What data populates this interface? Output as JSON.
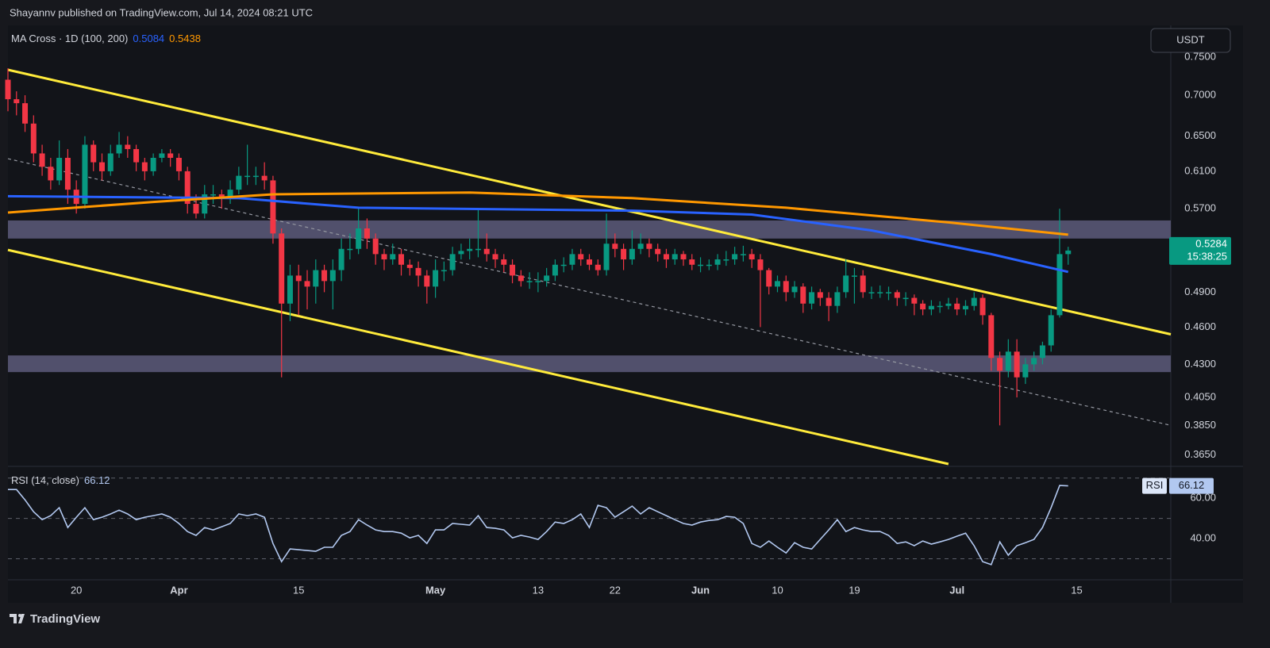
{
  "header": "Shayannv published on TradingView.com, Jul 14, 2024 08:21 UTC",
  "currency": "USDT",
  "footer": "TradingView",
  "chart_data": [
    {
      "type": "candlestick",
      "indicator_name": "MA Cross · 1D (100, 200)",
      "log": true,
      "ylim": [
        0.359,
        0.791
      ],
      "xlim": [
        "2024-03-12",
        "2024-07-26"
      ],
      "yticks": [
        {
          "value": 0.75,
          "label": "0.7500"
        },
        {
          "value": 0.7,
          "label": "0.7000"
        },
        {
          "value": 0.65,
          "label": "0.6500"
        },
        {
          "value": 0.61,
          "label": "0.6100"
        },
        {
          "value": 0.57,
          "label": "0.5700"
        },
        {
          "value": 0.49,
          "label": "0.4900"
        },
        {
          "value": 0.46,
          "label": "0.4600"
        },
        {
          "value": 0.43,
          "label": "0.4300"
        },
        {
          "value": 0.405,
          "label": "0.4050"
        },
        {
          "value": 0.385,
          "label": "0.3850"
        },
        {
          "value": 0.365,
          "label": "0.3650"
        }
      ],
      "up_color": "#089981",
      "down_color": "#f23645",
      "countdown": "15:38:25",
      "x": [
        "2024-03-12",
        "2024-03-13",
        "2024-03-14",
        "2024-03-15",
        "2024-03-16",
        "2024-03-17",
        "2024-03-18",
        "2024-03-19",
        "2024-03-20",
        "2024-03-21",
        "2024-03-22",
        "2024-03-23",
        "2024-03-24",
        "2024-03-25",
        "2024-03-26",
        "2024-03-27",
        "2024-03-28",
        "2024-03-29",
        "2024-03-30",
        "2024-03-31",
        "2024-04-01",
        "2024-04-02",
        "2024-04-03",
        "2024-04-04",
        "2024-04-05",
        "2024-04-06",
        "2024-04-07",
        "2024-04-08",
        "2024-04-09",
        "2024-04-10",
        "2024-04-11",
        "2024-04-12",
        "2024-04-13",
        "2024-04-14",
        "2024-04-15",
        "2024-04-16",
        "2024-04-17",
        "2024-04-18",
        "2024-04-19",
        "2024-04-20",
        "2024-04-21",
        "2024-04-22",
        "2024-04-23",
        "2024-04-24",
        "2024-04-25",
        "2024-04-26",
        "2024-04-27",
        "2024-04-28",
        "2024-04-29",
        "2024-04-30",
        "2024-05-01",
        "2024-05-02",
        "2024-05-03",
        "2024-05-04",
        "2024-05-05",
        "2024-05-06",
        "2024-05-07",
        "2024-05-08",
        "2024-05-09",
        "2024-05-10",
        "2024-05-11",
        "2024-05-12",
        "2024-05-13",
        "2024-05-14",
        "2024-05-15",
        "2024-05-16",
        "2024-05-17",
        "2024-05-18",
        "2024-05-19",
        "2024-05-20",
        "2024-05-21",
        "2024-05-22",
        "2024-05-23",
        "2024-05-24",
        "2024-05-25",
        "2024-05-26",
        "2024-05-27",
        "2024-05-28",
        "2024-05-29",
        "2024-05-30",
        "2024-05-31",
        "2024-06-01",
        "2024-06-02",
        "2024-06-03",
        "2024-06-04",
        "2024-06-05",
        "2024-06-06",
        "2024-06-07",
        "2024-06-08",
        "2024-06-09",
        "2024-06-10",
        "2024-06-11",
        "2024-06-12",
        "2024-06-13",
        "2024-06-14",
        "2024-06-15",
        "2024-06-16",
        "2024-06-17",
        "2024-06-18",
        "2024-06-19",
        "2024-06-20",
        "2024-06-21",
        "2024-06-22",
        "2024-06-23",
        "2024-06-24",
        "2024-06-25",
        "2024-06-26",
        "2024-06-27",
        "2024-06-28",
        "2024-06-29",
        "2024-06-30",
        "2024-07-01",
        "2024-07-02",
        "2024-07-03",
        "2024-07-04",
        "2024-07-05",
        "2024-07-06",
        "2024-07-07",
        "2024-07-08",
        "2024-07-09",
        "2024-07-10",
        "2024-07-11",
        "2024-07-12",
        "2024-07-13",
        "2024-07-14"
      ],
      "open": [
        0.72,
        0.695,
        0.69,
        0.665,
        0.63,
        0.615,
        0.6,
        0.625,
        0.59,
        0.575,
        0.64,
        0.62,
        0.61,
        0.63,
        0.64,
        0.635,
        0.62,
        0.61,
        0.625,
        0.63,
        0.625,
        0.61,
        0.575,
        0.565,
        0.585,
        0.585,
        0.58,
        0.59,
        0.605,
        0.605,
        0.605,
        0.6,
        0.545,
        0.48,
        0.505,
        0.5,
        0.495,
        0.51,
        0.5,
        0.51,
        0.53,
        0.53,
        0.55,
        0.54,
        0.525,
        0.52,
        0.525,
        0.515,
        0.512,
        0.505,
        0.495,
        0.51,
        0.51,
        0.525,
        0.528,
        0.53,
        0.53,
        0.525,
        0.52,
        0.515,
        0.505,
        0.5,
        0.5,
        0.5,
        0.505,
        0.515,
        0.515,
        0.525,
        0.52,
        0.515,
        0.51,
        0.535,
        0.53,
        0.52,
        0.53,
        0.535,
        0.53,
        0.525,
        0.52,
        0.525,
        0.52,
        0.515,
        0.515,
        0.515,
        0.52,
        0.52,
        0.525,
        0.525,
        0.52,
        0.51,
        0.495,
        0.5,
        0.49,
        0.495,
        0.48,
        0.49,
        0.485,
        0.478,
        0.49,
        0.505,
        0.505,
        0.49,
        0.49,
        0.49,
        0.49,
        0.485,
        0.485,
        0.48,
        0.475,
        0.478,
        0.478,
        0.48,
        0.475,
        0.478,
        0.485,
        0.47,
        0.435,
        0.425,
        0.44,
        0.42,
        0.43,
        0.435,
        0.445,
        0.47,
        0.525
      ],
      "high": [
        0.735,
        0.705,
        0.7,
        0.675,
        0.64,
        0.625,
        0.645,
        0.635,
        0.6,
        0.65,
        0.645,
        0.63,
        0.64,
        0.655,
        0.65,
        0.64,
        0.625,
        0.63,
        0.635,
        0.635,
        0.63,
        0.615,
        0.585,
        0.595,
        0.595,
        0.59,
        0.6,
        0.615,
        0.64,
        0.615,
        0.62,
        0.605,
        0.55,
        0.515,
        0.515,
        0.51,
        0.52,
        0.515,
        0.52,
        0.54,
        0.545,
        0.57,
        0.56,
        0.545,
        0.53,
        0.535,
        0.53,
        0.52,
        0.518,
        0.51,
        0.52,
        0.518,
        0.532,
        0.535,
        0.54,
        0.57,
        0.545,
        0.53,
        0.525,
        0.52,
        0.51,
        0.508,
        0.508,
        0.512,
        0.52,
        0.522,
        0.53,
        0.53,
        0.525,
        0.52,
        0.565,
        0.545,
        0.535,
        0.548,
        0.545,
        0.54,
        0.535,
        0.53,
        0.53,
        0.528,
        0.525,
        0.522,
        0.52,
        0.525,
        0.528,
        0.532,
        0.533,
        0.53,
        0.525,
        0.512,
        0.505,
        0.505,
        0.5,
        0.498,
        0.495,
        0.493,
        0.49,
        0.495,
        0.52,
        0.512,
        0.51,
        0.495,
        0.496,
        0.495,
        0.492,
        0.49,
        0.488,
        0.483,
        0.483,
        0.482,
        0.485,
        0.485,
        0.483,
        0.49,
        0.488,
        0.472,
        0.44,
        0.45,
        0.45,
        0.435,
        0.44,
        0.448,
        0.475,
        0.57,
        0.532
      ],
      "low": [
        0.68,
        0.675,
        0.655,
        0.62,
        0.605,
        0.59,
        0.595,
        0.575,
        0.565,
        0.57,
        0.61,
        0.6,
        0.605,
        0.625,
        0.625,
        0.61,
        0.6,
        0.605,
        0.62,
        0.615,
        0.6,
        0.565,
        0.56,
        0.56,
        0.575,
        0.57,
        0.575,
        0.585,
        0.595,
        0.595,
        0.59,
        0.535,
        0.42,
        0.465,
        0.47,
        0.475,
        0.48,
        0.49,
        0.475,
        0.5,
        0.52,
        0.525,
        0.53,
        0.515,
        0.51,
        0.515,
        0.505,
        0.505,
        0.495,
        0.48,
        0.485,
        0.5,
        0.505,
        0.52,
        0.52,
        0.522,
        0.518,
        0.512,
        0.508,
        0.498,
        0.495,
        0.493,
        0.49,
        0.495,
        0.5,
        0.508,
        0.51,
        0.514,
        0.51,
        0.505,
        0.505,
        0.522,
        0.51,
        0.515,
        0.525,
        0.522,
        0.518,
        0.512,
        0.515,
        0.514,
        0.51,
        0.508,
        0.51,
        0.51,
        0.514,
        0.515,
        0.518,
        0.512,
        0.46,
        0.488,
        0.49,
        0.482,
        0.485,
        0.472,
        0.475,
        0.478,
        0.465,
        0.472,
        0.485,
        0.48,
        0.485,
        0.484,
        0.485,
        0.483,
        0.478,
        0.478,
        0.47,
        0.47,
        0.47,
        0.472,
        0.475,
        0.47,
        0.47,
        0.474,
        0.462,
        0.425,
        0.385,
        0.42,
        0.405,
        0.415,
        0.425,
        0.43,
        0.44,
        0.468,
        0.515
      ],
      "close": [
        0.695,
        0.69,
        0.665,
        0.63,
        0.615,
        0.6,
        0.625,
        0.59,
        0.575,
        0.64,
        0.62,
        0.61,
        0.63,
        0.64,
        0.635,
        0.62,
        0.61,
        0.625,
        0.63,
        0.625,
        0.61,
        0.575,
        0.565,
        0.585,
        0.585,
        0.58,
        0.59,
        0.605,
        0.605,
        0.605,
        0.6,
        0.545,
        0.48,
        0.505,
        0.5,
        0.495,
        0.51,
        0.5,
        0.51,
        0.53,
        0.53,
        0.55,
        0.54,
        0.525,
        0.52,
        0.525,
        0.515,
        0.512,
        0.505,
        0.495,
        0.51,
        0.51,
        0.525,
        0.528,
        0.53,
        0.53,
        0.525,
        0.52,
        0.515,
        0.505,
        0.5,
        0.5,
        0.5,
        0.505,
        0.515,
        0.515,
        0.525,
        0.52,
        0.515,
        0.51,
        0.535,
        0.53,
        0.52,
        0.53,
        0.535,
        0.53,
        0.525,
        0.52,
        0.525,
        0.52,
        0.515,
        0.515,
        0.515,
        0.52,
        0.52,
        0.525,
        0.525,
        0.52,
        0.51,
        0.495,
        0.5,
        0.49,
        0.495,
        0.48,
        0.49,
        0.485,
        0.478,
        0.49,
        0.505,
        0.505,
        0.49,
        0.49,
        0.49,
        0.49,
        0.485,
        0.485,
        0.48,
        0.475,
        0.478,
        0.478,
        0.48,
        0.475,
        0.478,
        0.485,
        0.47,
        0.435,
        0.425,
        0.44,
        0.42,
        0.43,
        0.435,
        0.445,
        0.47,
        0.525,
        0.5284
      ],
      "series": [
        {
          "color": "#2962ff",
          "x": [
            "2024-03-12",
            "2024-04-08",
            "2024-04-22",
            "2024-05-24",
            "2024-06-07",
            "2024-06-21",
            "2024-07-05",
            "2024-07-14"
          ],
          "values": [
            0.583,
            0.581,
            0.571,
            0.568,
            0.564,
            0.548,
            0.525,
            0.5084
          ]
        },
        {
          "color": "#ff9800",
          "x": [
            "2024-03-12",
            "2024-03-29",
            "2024-04-12",
            "2024-05-05",
            "2024-05-24",
            "2024-06-11",
            "2024-06-30",
            "2024-07-14"
          ],
          "values": [
            0.566,
            0.577,
            0.585,
            0.587,
            0.581,
            0.571,
            0.556,
            0.5438
          ]
        }
      ],
      "zones": [
        {
          "color": "#5d5a7b",
          "values": [
            0.54,
            0.558
          ]
        },
        {
          "color": "#5d5a7b",
          "values": [
            0.424,
            0.437
          ]
        }
      ],
      "trendlines": [
        {
          "color": "#ffeb3b",
          "dashed": false,
          "x": [
            "2024-03-12",
            "2024-07-26"
          ],
          "values": [
            0.733,
            0.454
          ]
        },
        {
          "color": "#ffeb3b",
          "dashed": false,
          "x": [
            "2024-03-12",
            "2024-06-30"
          ],
          "values": [
            0.529,
            0.359
          ]
        },
        {
          "color": "#9598a1",
          "dashed": true,
          "x": [
            "2024-03-12",
            "2024-07-26"
          ],
          "values": [
            0.624,
            0.385
          ]
        }
      ]
    },
    {
      "type": "line",
      "title": "RSI (14, close)",
      "axis_badge": "RSI",
      "ylim": [
        20,
        75
      ],
      "xlim": [
        "2024-03-12",
        "2024-07-26"
      ],
      "yticks": [
        {
          "value": 40,
          "label": "40.00"
        },
        {
          "value": 60,
          "label": "60.00"
        }
      ],
      "levels": [
        30,
        50,
        70
      ],
      "xticks": [
        {
          "value": "2024-03-20",
          "label": "20"
        },
        {
          "value": "2024-04-01",
          "label": "Apr"
        },
        {
          "value": "2024-04-15",
          "label": "15"
        },
        {
          "value": "2024-05-01",
          "label": "May"
        },
        {
          "value": "2024-05-13",
          "label": "13"
        },
        {
          "value": "2024-05-22",
          "label": "22"
        },
        {
          "value": "2024-06-01",
          "label": "Jun"
        },
        {
          "value": "2024-06-10",
          "label": "10"
        },
        {
          "value": "2024-06-19",
          "label": "19"
        },
        {
          "value": "2024-07-01",
          "label": "Jul"
        },
        {
          "value": "2024-07-15",
          "label": "15"
        }
      ],
      "x": [
        "2024-03-12",
        "2024-03-13",
        "2024-03-14",
        "2024-03-15",
        "2024-03-16",
        "2024-03-17",
        "2024-03-18",
        "2024-03-19",
        "2024-03-20",
        "2024-03-21",
        "2024-03-22",
        "2024-03-23",
        "2024-03-24",
        "2024-03-25",
        "2024-03-26",
        "2024-03-27",
        "2024-03-28",
        "2024-03-29",
        "2024-03-30",
        "2024-03-31",
        "2024-04-01",
        "2024-04-02",
        "2024-04-03",
        "2024-04-04",
        "2024-04-05",
        "2024-04-06",
        "2024-04-07",
        "2024-04-08",
        "2024-04-09",
        "2024-04-10",
        "2024-04-11",
        "2024-04-12",
        "2024-04-13",
        "2024-04-14",
        "2024-04-15",
        "2024-04-16",
        "2024-04-17",
        "2024-04-18",
        "2024-04-19",
        "2024-04-20",
        "2024-04-21",
        "2024-04-22",
        "2024-04-23",
        "2024-04-24",
        "2024-04-25",
        "2024-04-26",
        "2024-04-27",
        "2024-04-28",
        "2024-04-29",
        "2024-04-30",
        "2024-05-01",
        "2024-05-02",
        "2024-05-03",
        "2024-05-04",
        "2024-05-05",
        "2024-05-06",
        "2024-05-07",
        "2024-05-08",
        "2024-05-09",
        "2024-05-10",
        "2024-05-11",
        "2024-05-12",
        "2024-05-13",
        "2024-05-14",
        "2024-05-15",
        "2024-05-16",
        "2024-05-17",
        "2024-05-18",
        "2024-05-19",
        "2024-05-20",
        "2024-05-21",
        "2024-05-22",
        "2024-05-23",
        "2024-05-24",
        "2024-05-25",
        "2024-05-26",
        "2024-05-27",
        "2024-05-28",
        "2024-05-29",
        "2024-05-30",
        "2024-05-31",
        "2024-06-01",
        "2024-06-02",
        "2024-06-03",
        "2024-06-04",
        "2024-06-05",
        "2024-06-06",
        "2024-06-07",
        "2024-06-08",
        "2024-06-09",
        "2024-06-10",
        "2024-06-11",
        "2024-06-12",
        "2024-06-13",
        "2024-06-14",
        "2024-06-15",
        "2024-06-16",
        "2024-06-17",
        "2024-06-18",
        "2024-06-19",
        "2024-06-20",
        "2024-06-21",
        "2024-06-22",
        "2024-06-23",
        "2024-06-24",
        "2024-06-25",
        "2024-06-26",
        "2024-06-27",
        "2024-06-28",
        "2024-06-29",
        "2024-06-30",
        "2024-07-01",
        "2024-07-02",
        "2024-07-03",
        "2024-07-04",
        "2024-07-05",
        "2024-07-06",
        "2024-07-07",
        "2024-07-08",
        "2024-07-09",
        "2024-07-10",
        "2024-07-11",
        "2024-07-12",
        "2024-07-13",
        "2024-07-14"
      ],
      "series": [
        {
          "color": "#b2c8f0",
          "values": [
            64.3,
            64.3,
            59.2,
            53.3,
            49.4,
            51.4,
            55.3,
            45.5,
            50.6,
            55.3,
            49.4,
            50.6,
            52.2,
            54.1,
            52.2,
            49.4,
            50.6,
            51.4,
            52.2,
            50.6,
            47.5,
            43.5,
            41.6,
            45.5,
            44.3,
            45.9,
            47.5,
            52.2,
            51.4,
            52.2,
            50.6,
            37.6,
            28.6,
            34.9,
            34.5,
            34.1,
            33.7,
            35.7,
            35.7,
            41.6,
            43.5,
            49.4,
            46.7,
            44.3,
            43.5,
            43.5,
            42.7,
            40.4,
            41.6,
            37.6,
            44.3,
            44.3,
            47.5,
            47.1,
            46.7,
            51.4,
            45.5,
            45.1,
            44.3,
            40.4,
            41.6,
            40.8,
            39.6,
            43.5,
            48.2,
            47.5,
            49.4,
            52.2,
            45.5,
            56.5,
            55.3,
            50.6,
            53.3,
            56.1,
            52.2,
            55.3,
            53.3,
            51.4,
            49.4,
            47.5,
            46.7,
            48.2,
            49,
            49.4,
            51,
            50.6,
            47.5,
            37.6,
            35.7,
            38.8,
            35.7,
            32.9,
            38,
            35.7,
            34.9,
            39.6,
            44.3,
            49.4,
            43.5,
            45.5,
            44.3,
            43.5,
            43.5,
            41.6,
            37.6,
            38.4,
            36.5,
            38.8,
            37.3,
            38.4,
            39.6,
            41.2,
            42.7,
            36.5,
            28.6,
            27.1,
            38.4,
            31.8,
            36.5,
            38,
            39.6,
            45.5,
            55.3,
            66.3,
            66.12
          ]
        }
      ]
    }
  ]
}
